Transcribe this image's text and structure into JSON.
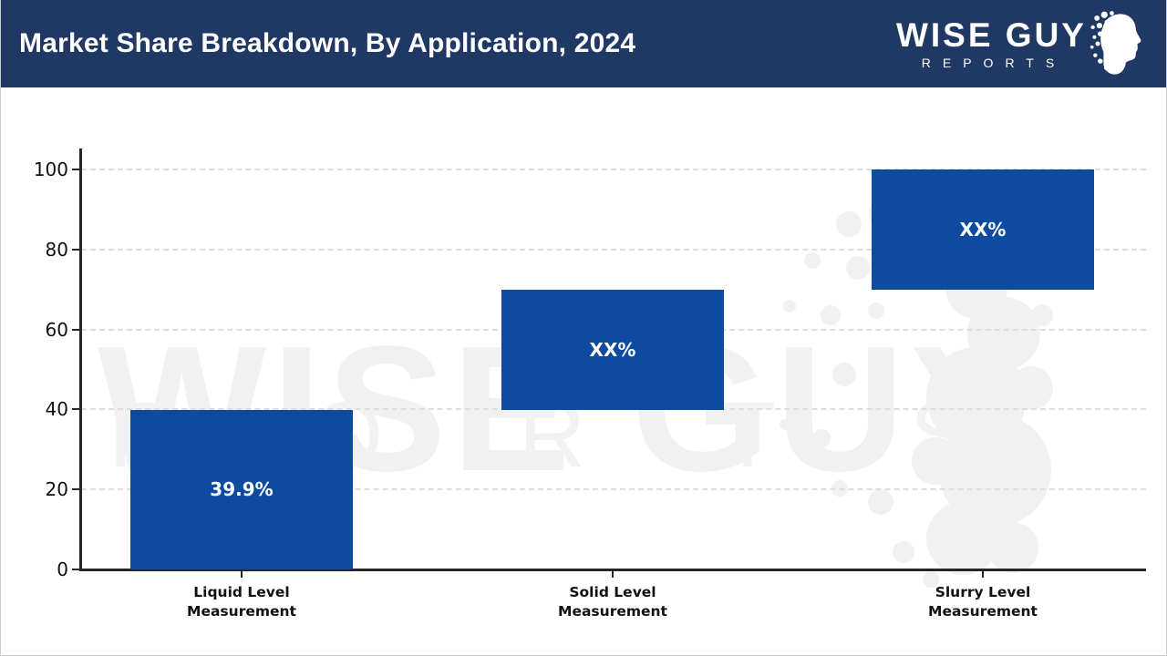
{
  "header": {
    "title": "Market Share Breakdown, By Application, 2024",
    "logo": {
      "line1": "WISE GUY",
      "line2": "REPORTS"
    }
  },
  "watermark": {
    "line1": "WISE GUY",
    "line2": "R O R T S"
  },
  "chart_data": {
    "type": "bar",
    "subtype": "floating-segment-waterfall",
    "title": "Market Share Breakdown, By Application, 2024",
    "categories": [
      "Liquid Level Measurement",
      "Solid Level Measurement",
      "Slurry Level Measurement"
    ],
    "category_lines": [
      [
        "Liquid Level",
        "Measurement"
      ],
      [
        "Solid Level",
        "Measurement"
      ],
      [
        "Slurry Level",
        "Measurement"
      ]
    ],
    "series": [
      {
        "name": "Liquid Level Measurement",
        "start": 0,
        "end": 39.9,
        "label": "39.9%"
      },
      {
        "name": "Solid Level Measurement",
        "start": 39.9,
        "end": 70,
        "label": "XX%"
      },
      {
        "name": "Slurry Level Measurement",
        "start": 70,
        "end": 100,
        "label": "XX%"
      }
    ],
    "yticks": [
      0,
      20,
      40,
      60,
      80,
      100
    ],
    "ylim": [
      0,
      105
    ],
    "xlabel": "",
    "ylabel": "",
    "grid": "dashed-horizontal",
    "legend": "none"
  },
  "colors": {
    "header_bg": "#1f3864",
    "bar": "#0d4ba0",
    "bar_label": "#ffffff",
    "grid": "#dedede",
    "axis": "#262626",
    "watermark": "#f1f1f1",
    "border": "#cccccc"
  }
}
